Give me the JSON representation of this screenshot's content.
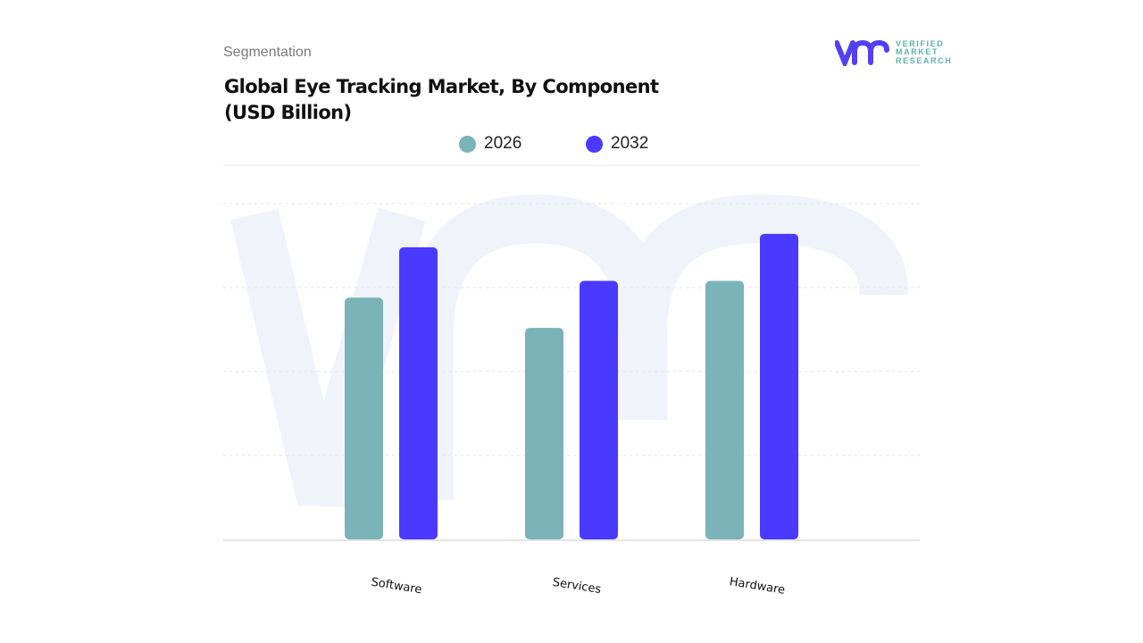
{
  "header": {
    "segment_label": "Segmentation",
    "title_line1": "Global Eye Tracking Market, By Component",
    "title_line2": "(USD Billion)"
  },
  "logo": {
    "mark": "vmr",
    "line1": "VERIFIED",
    "line2": "MARKET",
    "line3": "RESEARCH"
  },
  "chart_data": {
    "type": "bar",
    "title": "Global Eye Tracking Market, By Component (USD Billion)",
    "categories": [
      "Software",
      "Services",
      "Hardware"
    ],
    "series": [
      {
        "name": "2026",
        "color": "#7ab3b8",
        "values": [
          72,
          63,
          77
        ]
      },
      {
        "name": "2032",
        "color": "#4a3aff",
        "values": [
          87,
          77,
          91
        ]
      }
    ],
    "value_note_units": "relative (no y-axis tick labels shown)",
    "ylim": [
      0,
      100
    ],
    "grid": true,
    "legend": "top-center"
  }
}
